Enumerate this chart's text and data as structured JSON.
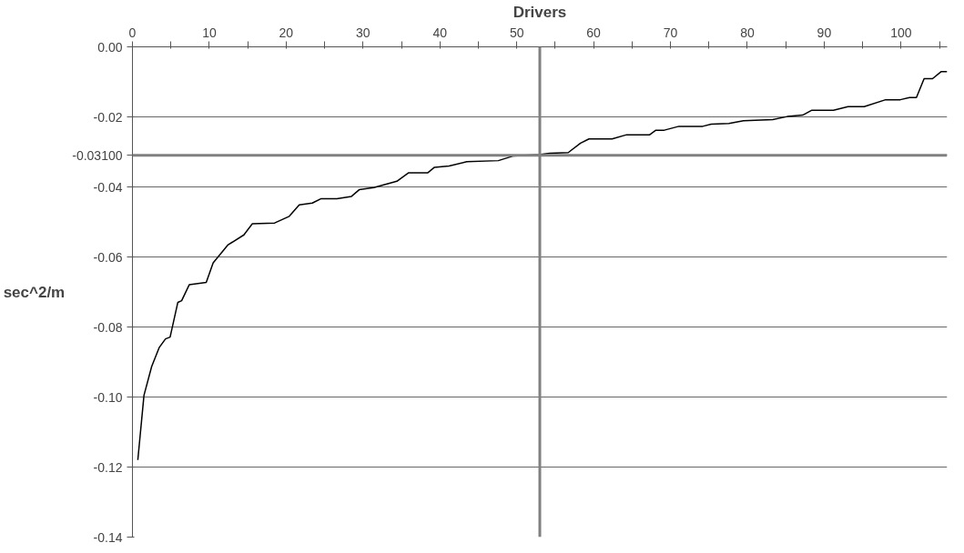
{
  "chart_data": {
    "type": "line",
    "xlabel": "Drivers",
    "ylabel": "sec^2/m",
    "x": [
      0.7,
      1.5,
      2.5,
      3.5,
      4.3,
      4.9,
      5.9,
      6.4,
      7.4,
      9.6,
      10.5,
      12.4,
      14.5,
      15.6,
      18.5,
      20.4,
      21.7,
      23.4,
      24.5,
      26.6,
      28.5,
      29.5,
      31.4,
      34.4,
      35.9,
      38.4,
      39.3,
      41.2,
      43.5,
      47.6,
      49.5,
      52.9,
      54.3,
      56.7,
      58.3,
      59.4,
      62.4,
      64.3,
      67.3,
      68.1,
      69.2,
      71.1,
      74.2,
      75.3,
      77.6,
      79.5,
      83.3,
      85.2,
      87.2,
      88.4,
      91.2,
      93.1,
      95.2,
      98.0,
      99.9,
      101.1,
      102.0,
      103.0,
      104.1,
      105.2,
      106.0
    ],
    "series": [
      {
        "color": "#000000",
        "values": [
          -0.118,
          -0.0995,
          -0.0913,
          -0.0858,
          -0.0834,
          -0.0829,
          -0.073,
          -0.0725,
          -0.0679,
          -0.0673,
          -0.0617,
          -0.0566,
          -0.0537,
          -0.0505,
          -0.0503,
          -0.0484,
          -0.0451,
          -0.0446,
          -0.0434,
          -0.0434,
          -0.0427,
          -0.0408,
          -0.0402,
          -0.0384,
          -0.036,
          -0.036,
          -0.0344,
          -0.034,
          -0.0328,
          -0.0325,
          -0.0312,
          -0.0308,
          -0.0304,
          -0.0302,
          -0.0275,
          -0.0263,
          -0.0263,
          -0.0251,
          -0.0251,
          -0.0238,
          -0.0238,
          -0.0227,
          -0.0227,
          -0.0221,
          -0.0219,
          -0.0211,
          -0.0208,
          -0.0199,
          -0.0195,
          -0.0181,
          -0.0181,
          -0.0171,
          -0.0171,
          -0.0151,
          -0.0151,
          -0.0145,
          -0.0145,
          -0.0091,
          -0.0091,
          -0.0071,
          -0.0071
        ]
      }
    ],
    "xlim": [
      0,
      106
    ],
    "xticks": [
      0,
      {
        "value": 5,
        "label": null
      },
      10,
      {
        "value": 15,
        "label": null
      },
      20,
      {
        "value": 25,
        "label": null
      },
      30,
      {
        "value": 35,
        "label": null
      },
      40,
      {
        "value": 45,
        "label": null
      },
      50,
      {
        "value": 55,
        "label": null
      },
      60,
      {
        "value": 65,
        "label": null
      },
      70,
      {
        "value": 75,
        "label": null
      },
      80,
      {
        "value": 85,
        "label": null
      },
      90,
      {
        "value": 95,
        "label": null
      },
      100,
      {
        "value": 105,
        "label": null
      }
    ],
    "ylim": [
      -0.14,
      0
    ],
    "yticks": [
      {
        "value": 0,
        "label": "0.00"
      },
      {
        "value": -0.02,
        "label": "-0.02"
      },
      {
        "value": -0.031,
        "label": "-0.03100"
      },
      {
        "value": -0.04,
        "label": "-0.04"
      },
      {
        "value": -0.06,
        "label": "-0.06"
      },
      {
        "value": -0.08,
        "label": "-0.08"
      },
      {
        "value": -0.1,
        "label": "-0.10"
      },
      {
        "value": -0.12,
        "label": "-0.12"
      },
      {
        "value": -0.14,
        "label": "-0.14"
      }
    ],
    "ref_lines": [
      {
        "axis": "y",
        "value": -0.031,
        "color": "#808080"
      },
      {
        "axis": "x",
        "value": 53,
        "color": "#808080"
      }
    ],
    "grid": "y",
    "marker": "none",
    "line_style": "solid"
  }
}
